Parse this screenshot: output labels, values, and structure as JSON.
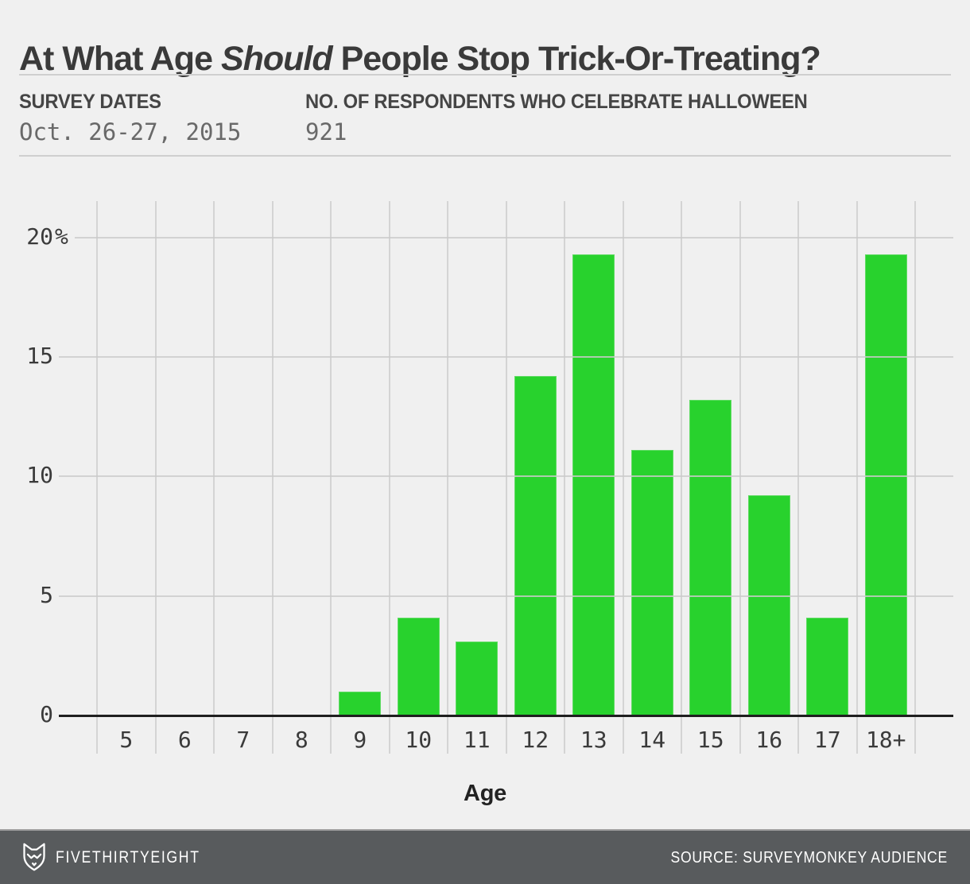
{
  "title": {
    "pre": "At What Age ",
    "italic": "Should",
    "post": " People Stop Trick-Or-Treating?"
  },
  "meta": {
    "col1": {
      "label": "SURVEY DATES",
      "value": "Oct. 26-27, 2015"
    },
    "col2": {
      "label": "NO. OF RESPONDENTS WHO CELEBRATE HALLOWEEN",
      "value": "921"
    }
  },
  "chart_data": {
    "type": "bar",
    "title": "At What Age Should People Stop Trick-Or-Treating?",
    "categories": [
      "5",
      "6",
      "7",
      "8",
      "9",
      "10",
      "11",
      "12",
      "13",
      "14",
      "15",
      "16",
      "17",
      "18+"
    ],
    "values": [
      0,
      0,
      0,
      0,
      1.0,
      4.1,
      3.1,
      14.2,
      19.3,
      11.1,
      13.2,
      9.2,
      4.1,
      19.3
    ],
    "xlabel": "Age",
    "ylabel": "",
    "ylim": [
      0,
      21.5
    ],
    "yticks": {
      "values": [
        20,
        15,
        10,
        5,
        0
      ],
      "labels": [
        "20%",
        "15",
        "10",
        "5",
        "0"
      ]
    },
    "grid": "both",
    "legend": "none",
    "bar_color": "#28d22d"
  },
  "footer": {
    "brand": "FIVETHIRTYEIGHT",
    "source": "SOURCE: SURVEYMONKEY AUDIENCE"
  },
  "colors": {
    "background": "#f0f0f0",
    "bar_green": "#28d22d",
    "footer_bg": "#585b5d",
    "grid": "#d4d4d4",
    "axis_line": "#1f1f1f",
    "title_text": "#3a3a3a"
  }
}
